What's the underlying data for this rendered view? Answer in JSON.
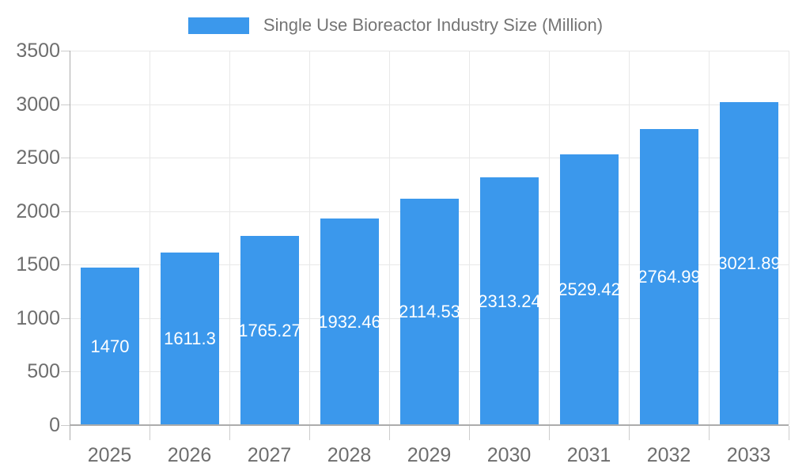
{
  "legend": {
    "label": "Single Use Bioreactor Industry Size (Million)"
  },
  "chart_data": {
    "type": "bar",
    "title": "Single Use Bioreactor Industry Size (Million)",
    "categories": [
      "2025",
      "2026",
      "2027",
      "2028",
      "2029",
      "2030",
      "2031",
      "2032",
      "2033"
    ],
    "values": [
      1470,
      1611.3,
      1765.27,
      1932.46,
      2114.53,
      2313.24,
      2529.42,
      2764.99,
      3021.89
    ],
    "bar_labels": [
      "1470",
      "1611.3",
      "1765.27",
      "1932.46",
      "2114.53",
      "2313.24",
      "2529.42",
      "2764.99",
      "3021.89"
    ],
    "xlabel": "",
    "ylabel": "",
    "ylim": [
      0,
      3500
    ],
    "ytick_step": 500,
    "yticks": [
      0,
      500,
      1000,
      1500,
      2000,
      2500,
      3000,
      3500
    ],
    "grid": true,
    "legend_position": "top"
  },
  "colors": {
    "bar": "#3B98EC",
    "bar_label_text": "#FFFFFF",
    "grid": "#E8E8E8",
    "axis_line": "#ACACAC",
    "tick": "#CCCCCC",
    "axis_text": "#6E6E6E",
    "legend_text": "#757575",
    "background": "#FFFFFF"
  }
}
